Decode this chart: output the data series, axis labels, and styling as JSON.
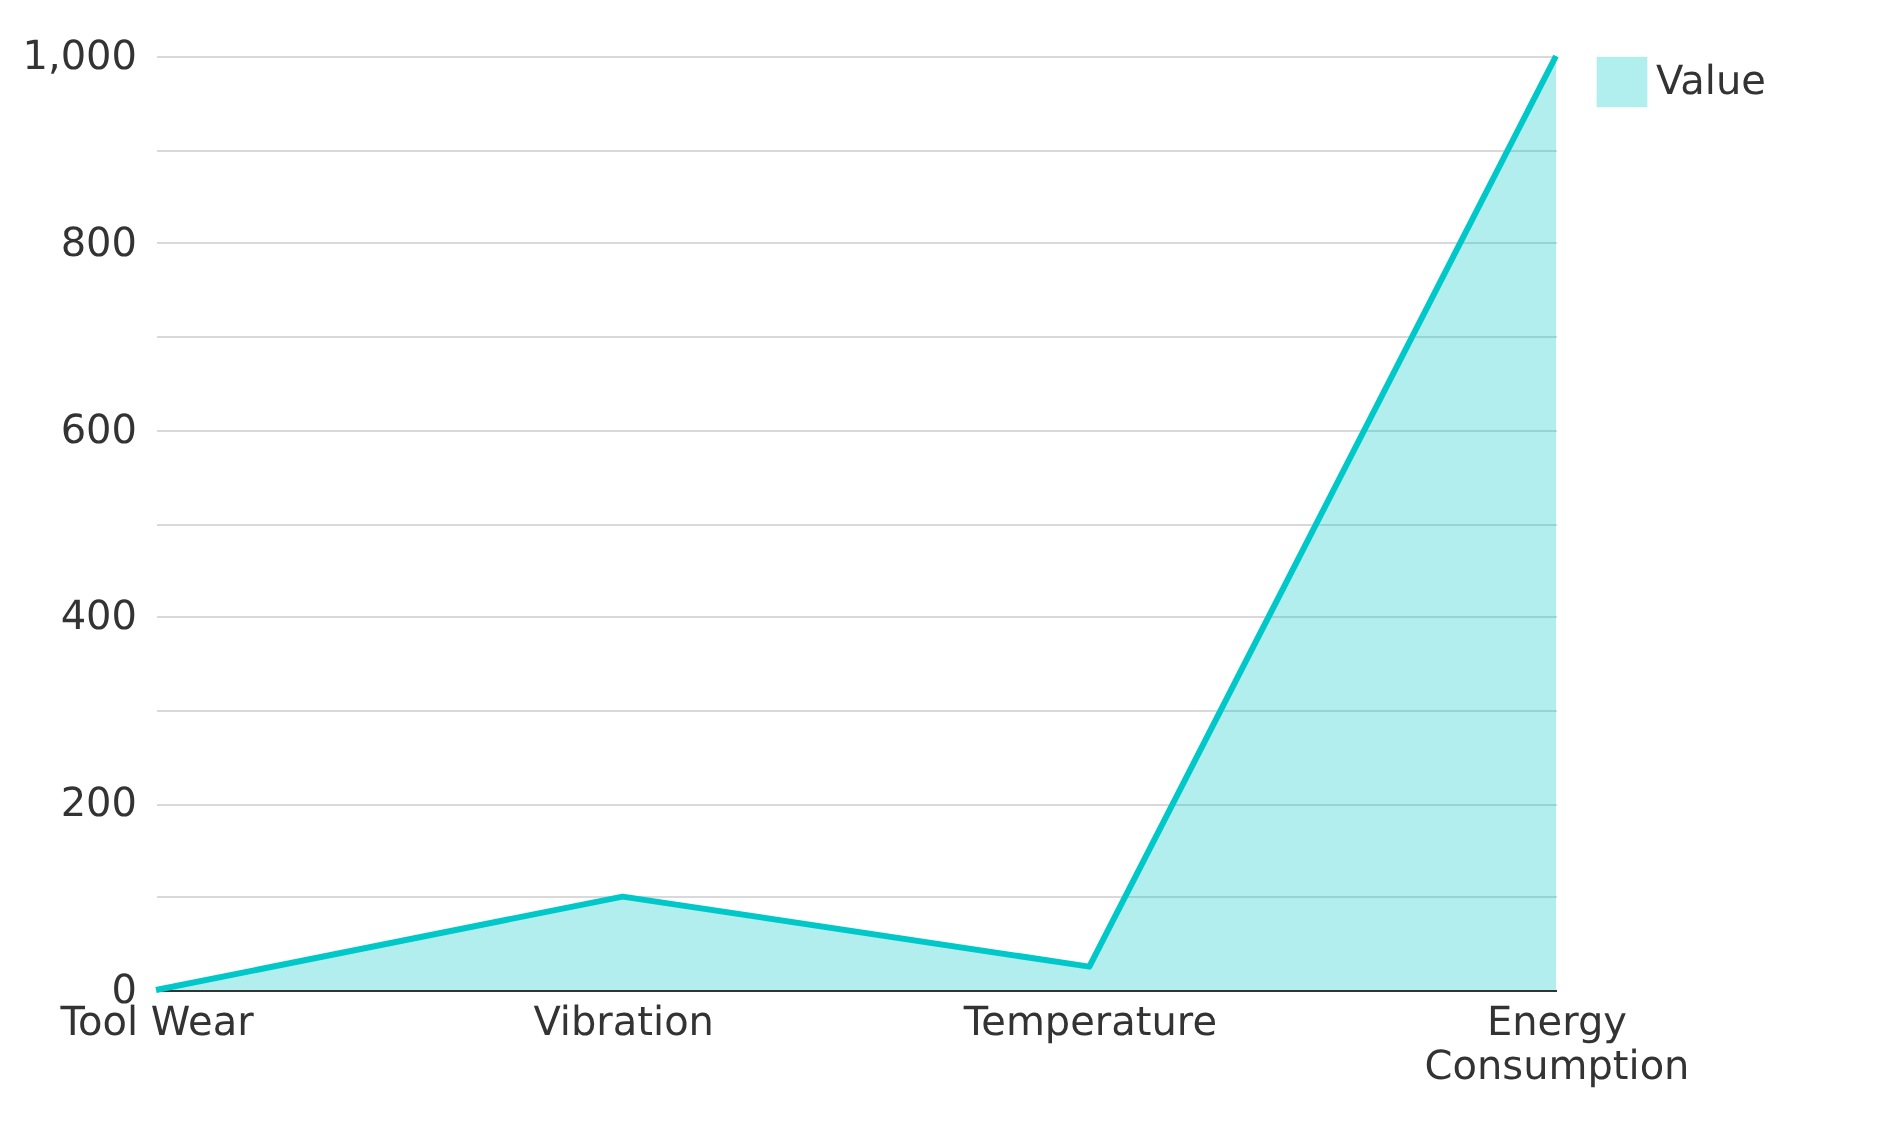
{
  "chart_data": {
    "type": "area",
    "categories": [
      "Tool Wear",
      "Vibration",
      "Temperature",
      "Energy Consumption"
    ],
    "series": [
      {
        "name": "Value",
        "color": "#00c8c8",
        "values": [
          0,
          100,
          25,
          1000
        ]
      }
    ],
    "ylim": [
      0,
      1000
    ],
    "yticks": [
      0,
      {
        "value": 100,
        "label": null
      },
      200,
      {
        "value": 300,
        "label": null
      },
      400,
      {
        "value": 500,
        "label": null
      },
      600,
      {
        "value": 700,
        "label": null
      },
      800,
      {
        "value": 900,
        "label": null
      },
      {
        "value": 1000,
        "label": "1,000"
      }
    ],
    "grid": "y",
    "legend": "top right"
  }
}
